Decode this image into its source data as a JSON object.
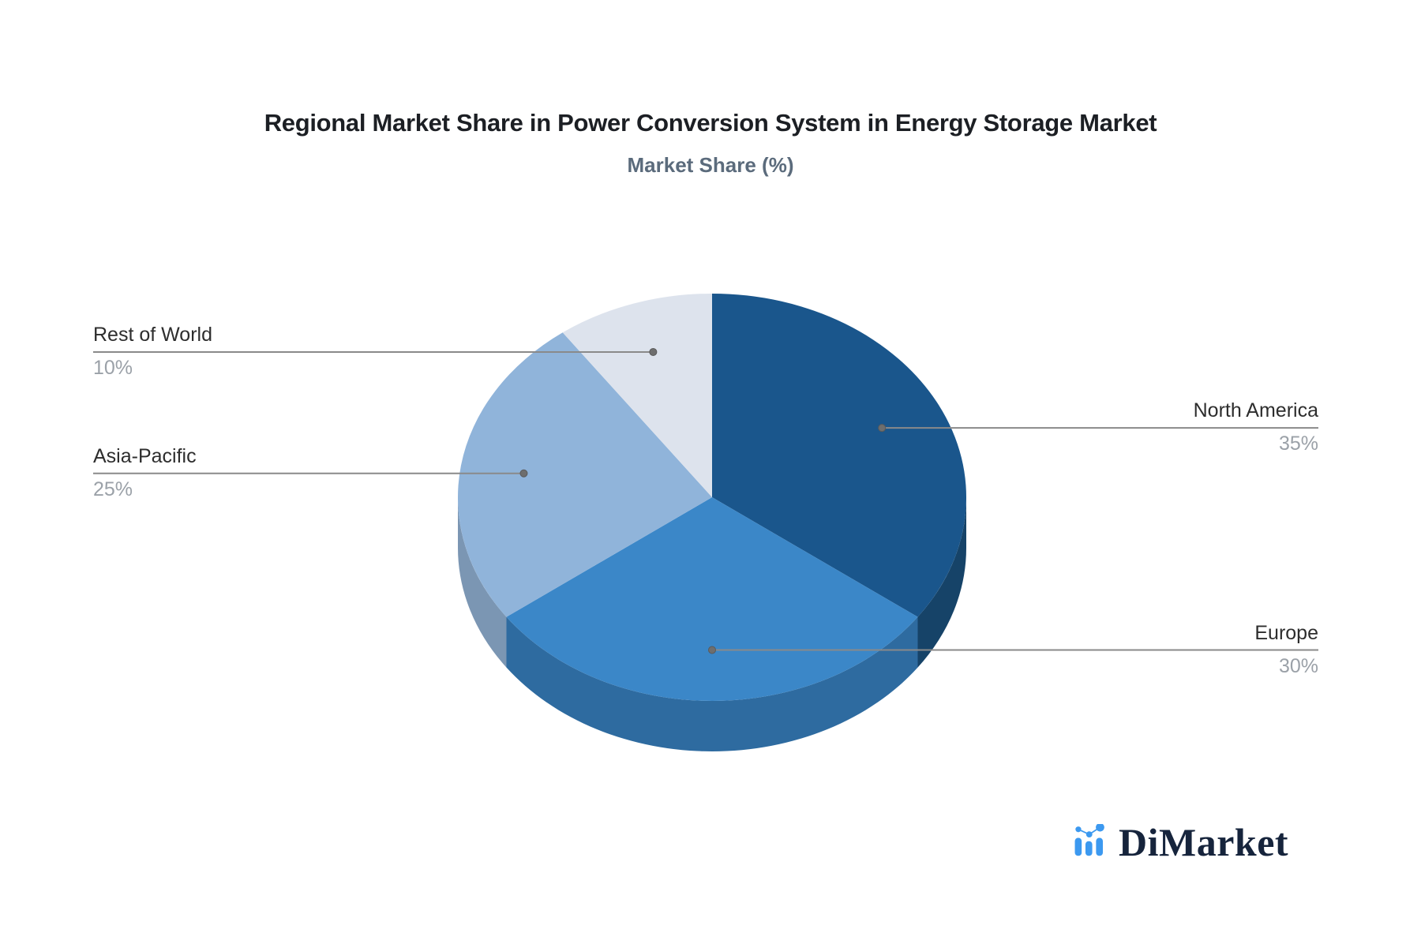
{
  "title": "Regional Market Share in Power Conversion System in Energy Storage Market",
  "subtitle": "Market Share (%)",
  "chart_data": {
    "type": "pie",
    "style": "3d",
    "title": "Regional Market Share in Power Conversion System in Energy Storage Market",
    "subtitle": "Market Share (%)",
    "unit": "%",
    "start_angle_deg": 0,
    "direction": "clockwise",
    "legend_position": "callout-labels",
    "slices": [
      {
        "label": "North America",
        "value": 35,
        "display": "35%",
        "color": "#1a568c",
        "side_color": "#164368"
      },
      {
        "label": "Europe",
        "value": 30,
        "display": "30%",
        "color": "#3b87c8",
        "side_color": "#2e6ba0"
      },
      {
        "label": "Asia-Pacific",
        "value": 25,
        "display": "25%",
        "color": "#90b4da",
        "side_color": "#7b96b3"
      },
      {
        "label": "Rest of World",
        "value": 10,
        "display": "10%",
        "color": "#dde3ed",
        "side_color": "#b9bfca"
      }
    ],
    "label_color": "#2d2d2d",
    "value_color": "#9ba1a8",
    "leader_line_color": "#8a8a8a",
    "leader_dot_color": "#6e6e6e"
  },
  "colors": {
    "title": "#1c1f24",
    "subtitle": "#5b6b7c",
    "background": "#ffffff"
  },
  "logo": {
    "text": "DiMarket",
    "icon": "bar-line-chart-icon",
    "icon_color": "#3c99f0",
    "text_color": "#16243c"
  }
}
